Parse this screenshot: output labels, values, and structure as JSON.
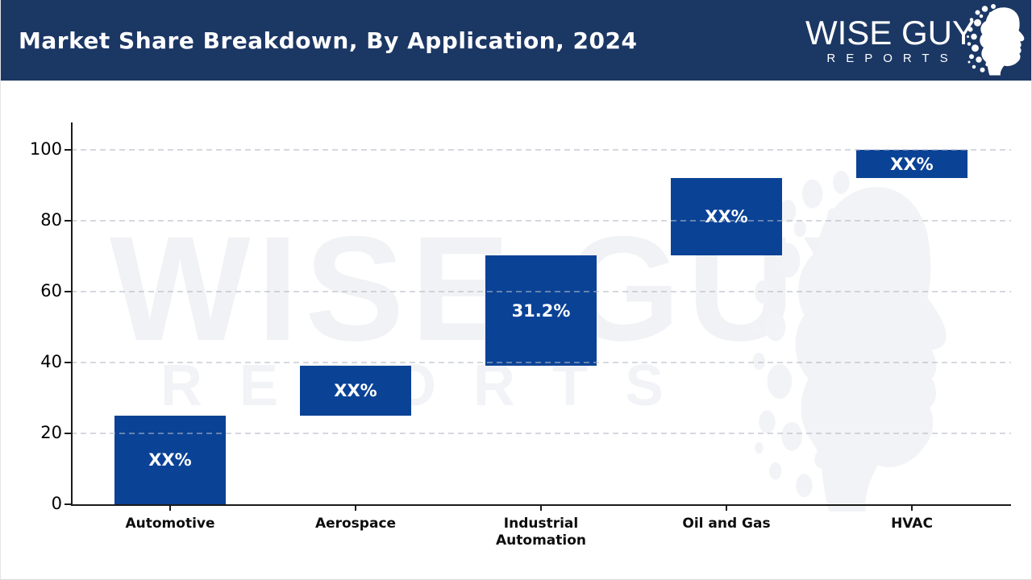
{
  "header": {
    "title": "Market Share Breakdown, By Application, 2024",
    "logo": {
      "brand": "WISE GUY",
      "sub": "REPORTS"
    }
  },
  "watermark": {
    "line1": "WISE GUY",
    "line2": "REPORTS"
  },
  "chart_data": {
    "type": "bar",
    "subtype": "waterfall-floating-bars",
    "title": "Market Share Breakdown, By Application, 2024",
    "categories": [
      "Automotive",
      "Aerospace",
      "Industrial\nAutomation",
      "Oil and Gas",
      "HVAC"
    ],
    "segments": [
      {
        "category": "Automotive",
        "start": 0,
        "end": 25,
        "value": 25,
        "label": "XX%"
      },
      {
        "category": "Aerospace",
        "start": 25,
        "end": 39,
        "value": 14,
        "label": "XX%"
      },
      {
        "category": "Industrial Automation",
        "start": 39,
        "end": 70.2,
        "value": 31.2,
        "label": "31.2%"
      },
      {
        "category": "Oil and Gas",
        "start": 70.2,
        "end": 92,
        "value": 21.8,
        "label": "XX%"
      },
      {
        "category": "HVAC",
        "start": 92,
        "end": 100,
        "value": 8,
        "label": "XX%"
      }
    ],
    "xlabel": "",
    "ylabel": "",
    "ylim": [
      0,
      100
    ],
    "yticks": [
      0,
      20,
      40,
      60,
      80,
      100
    ],
    "grid": "horizontal dashed, drawn over bars",
    "legend": "none",
    "bar_color": "#0a4296",
    "bar_label_color": "#ffffff",
    "header_color": "#1b3764",
    "gridline_color": "#d9d9d9",
    "axis_color": "#1a1a1a"
  }
}
